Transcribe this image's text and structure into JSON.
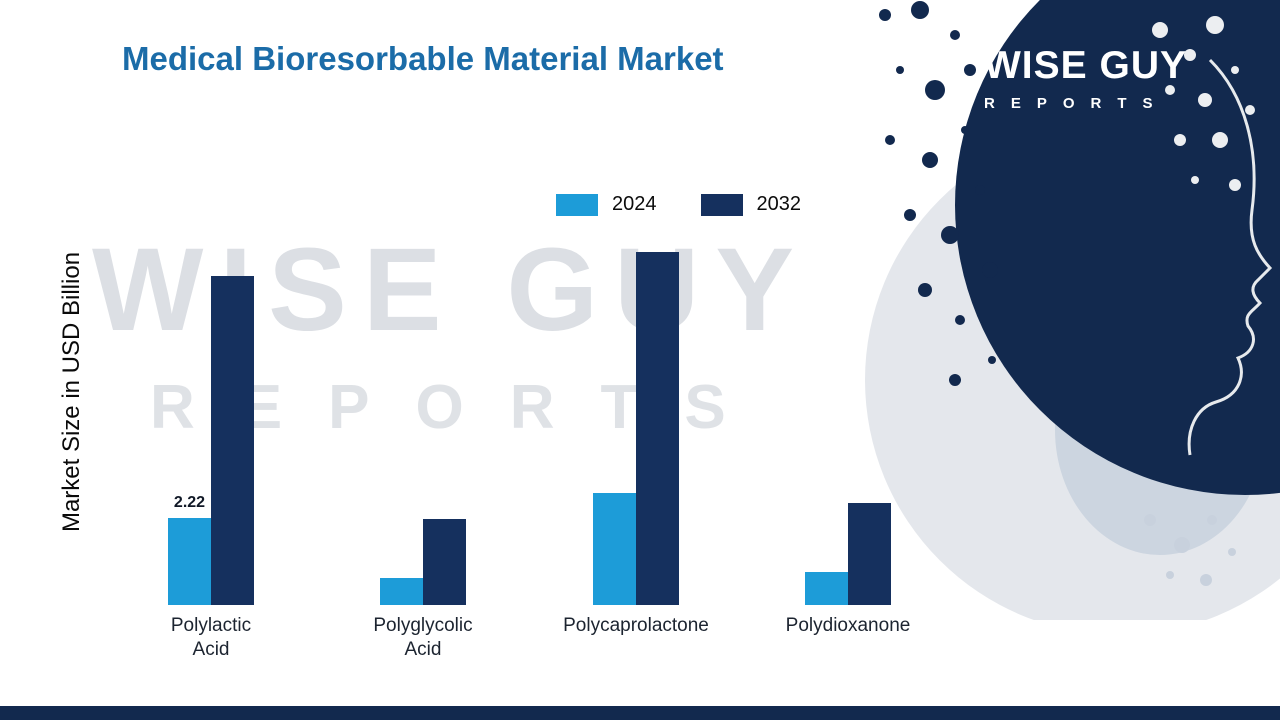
{
  "title": "Medical Bioresorbable Material Market",
  "logo": {
    "line1": "WISE GUY",
    "line2": "REPORTS"
  },
  "watermark": {
    "line1": "WISE GUY",
    "line2": "REPORTS"
  },
  "chart_data": {
    "type": "bar",
    "title": "Medical Bioresorbable Material Market",
    "ylabel": "Market Size in USD Billion",
    "xlabel": "",
    "categories": [
      "Polylactic Acid",
      "Polyglycolic Acid",
      "Polycaprolactone",
      "Polydioxanone"
    ],
    "category_labels_wrapped": [
      "Polylactic\nAcid",
      "Polyglycolic\nAcid",
      "Polycaprolactone",
      "Polydioxanone"
    ],
    "series": [
      {
        "name": "2024",
        "color": "#1d9cd8",
        "values": [
          2.22,
          0.7,
          2.85,
          0.85
        ]
      },
      {
        "name": "2032",
        "color": "#15305e",
        "values": [
          8.4,
          2.2,
          9.0,
          2.6
        ]
      }
    ],
    "annotations": [
      {
        "series_index": 0,
        "category_index": 0,
        "text": "2.22"
      }
    ],
    "ylim": [
      0,
      9.5
    ],
    "grid": false,
    "legend_position": "top",
    "units": "USD Billion"
  },
  "colors": {
    "title_blue": "#1b6ca8",
    "bar_2024_blue": "#1d9cd8",
    "bar_2032_navy": "#15305e",
    "brand_navy": "#12294e",
    "watermark_gray": "#dcdfe4",
    "footer_navy": "#12294e"
  }
}
